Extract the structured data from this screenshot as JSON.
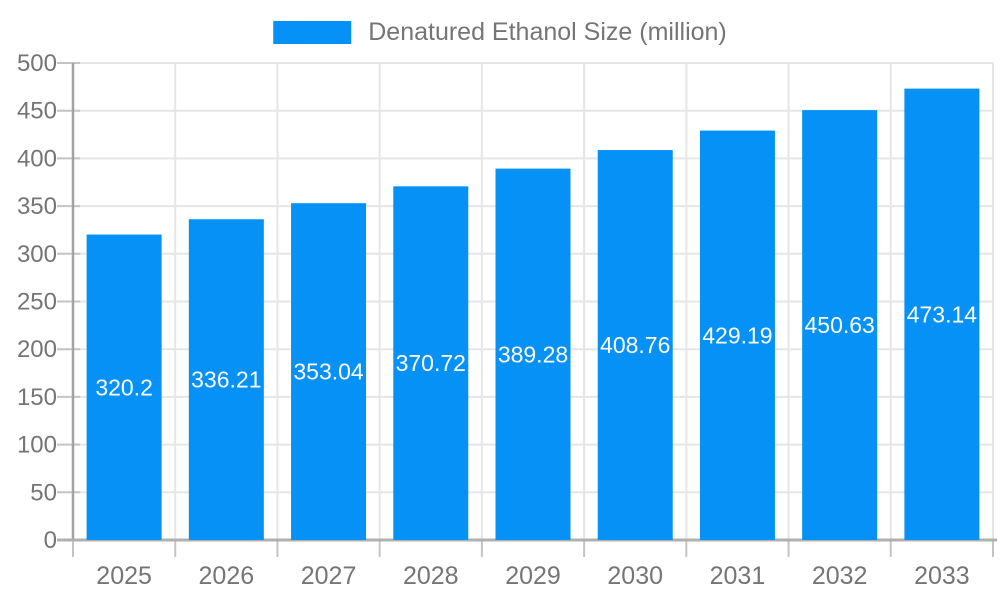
{
  "chart_data": {
    "type": "bar",
    "title": "Denatured Ethanol Size (million)",
    "categories": [
      "2025",
      "2026",
      "2027",
      "2028",
      "2029",
      "2030",
      "2031",
      "2032",
      "2033"
    ],
    "series": [
      {
        "name": "Denatured Ethanol Size (million)",
        "values": [
          320.2,
          336.21,
          353.04,
          370.72,
          389.28,
          408.76,
          429.19,
          450.63,
          473.14
        ]
      }
    ],
    "xlabel": "",
    "ylabel": "",
    "ylim": [
      0,
      500
    ],
    "y_tick_step": 50,
    "y_tick_labels": [
      "0",
      "50",
      "100",
      "150",
      "200",
      "250",
      "300",
      "350",
      "400",
      "450",
      "500"
    ],
    "grid": true,
    "legend_position": "top",
    "colors": {
      "bar": "#0591f6",
      "value_label": "#ffffff",
      "axis_text": "#757575",
      "legend_text": "#757575",
      "gridline": "#e6e6e6",
      "tick": "#c4c4c4",
      "y_axis_line": "#a3a3a3",
      "x_axis_line": "#b0b0b0"
    }
  }
}
